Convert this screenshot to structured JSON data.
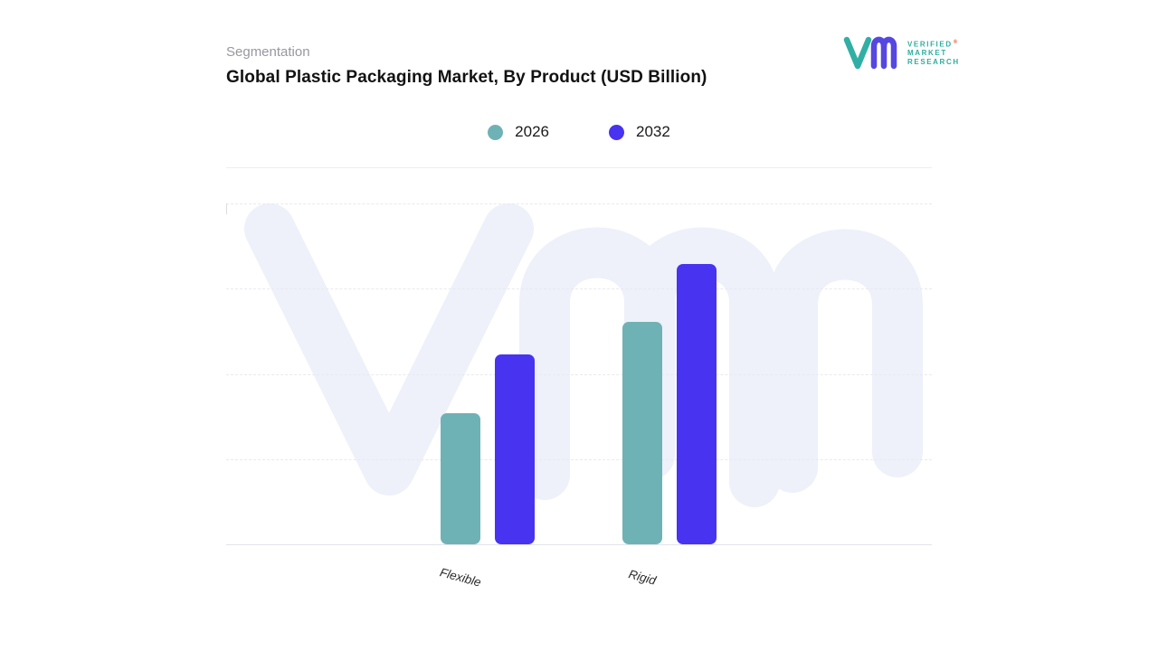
{
  "header": {
    "eyebrow": "Segmentation",
    "title": "Global Plastic Packaging Market, By Product (USD Billion)"
  },
  "brand": {
    "lines": [
      "VERIFIED",
      "MARKET",
      "RESEARCH"
    ],
    "registered_mark": "®",
    "teal": "#31afa4",
    "indigo": "#5547e0"
  },
  "chart_data": {
    "type": "bar",
    "title": "Global Plastic Packaging Market, By Product (USD Billion)",
    "categories": [
      "Flexible",
      "Rigid"
    ],
    "series": [
      {
        "name": "2026",
        "color": "#6fb2b6",
        "values": [
          145,
          246
        ]
      },
      {
        "name": "2032",
        "color": "#4733f0",
        "values": [
          210,
          310
        ]
      }
    ],
    "ylim": [
      0,
      378
    ],
    "xlabel": "",
    "ylabel": "",
    "y_axis_labels_visible": false,
    "grid": "dashed-horizontal",
    "legend_position": "top-center"
  }
}
